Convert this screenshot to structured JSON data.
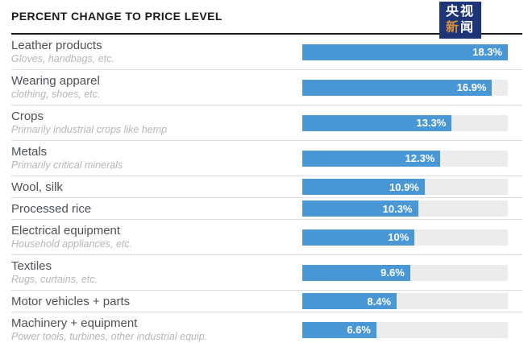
{
  "header": {
    "title": "PERCENT CHANGE TO PRICE LEVEL"
  },
  "logo": {
    "name": "cctv-news-logo",
    "line1": "央视",
    "line2_accent_char": "新",
    "line2_char": "闻",
    "background": "#1d3576",
    "accent_color": "#d9913f"
  },
  "colors": {
    "bar_fill": "#4a97d5",
    "bar_track": "#ececec",
    "separator": "#dcdcdc",
    "title": "#1c1c1e",
    "label": "#4d5257",
    "sublabel": "#b6b6bb",
    "value_text": "#ffffff"
  },
  "chart_data": {
    "type": "bar",
    "orientation": "horizontal",
    "title": "PERCENT CHANGE TO PRICE LEVEL",
    "unit": "%",
    "axis_max": 18.3,
    "grid": false,
    "legend": false,
    "rows": [
      {
        "label": "Leather products",
        "sublabel": "Gloves, handbags, etc.",
        "value": 18.3,
        "display": "18.3%"
      },
      {
        "label": "Wearing apparel",
        "sublabel": "clothing, shoes, etc.",
        "value": 16.9,
        "display": "16.9%"
      },
      {
        "label": "Crops",
        "sublabel": "Primarily industrial crops like hemp",
        "value": 13.3,
        "display": "13.3%"
      },
      {
        "label": "Metals",
        "sublabel": "Primarily critical minerals",
        "value": 12.3,
        "display": "12.3%"
      },
      {
        "label": "Wool, silk",
        "sublabel": "",
        "value": 10.9,
        "display": "10.9%"
      },
      {
        "label": "Processed rice",
        "sublabel": "",
        "value": 10.3,
        "display": "10.3%"
      },
      {
        "label": "Electrical equipment",
        "sublabel": "Household appliances, etc.",
        "value": 10,
        "display": "10%"
      },
      {
        "label": "Textiles",
        "sublabel": "Rugs, curtains, etc.",
        "value": 9.6,
        "display": "9.6%"
      },
      {
        "label": "Motor vehicles + parts",
        "sublabel": "",
        "value": 8.4,
        "display": "8.4%"
      },
      {
        "label": "Machinery + equipment",
        "sublabel": "Power tools, turbines, other industrial equip.",
        "value": 6.6,
        "display": "6.6%"
      }
    ]
  }
}
